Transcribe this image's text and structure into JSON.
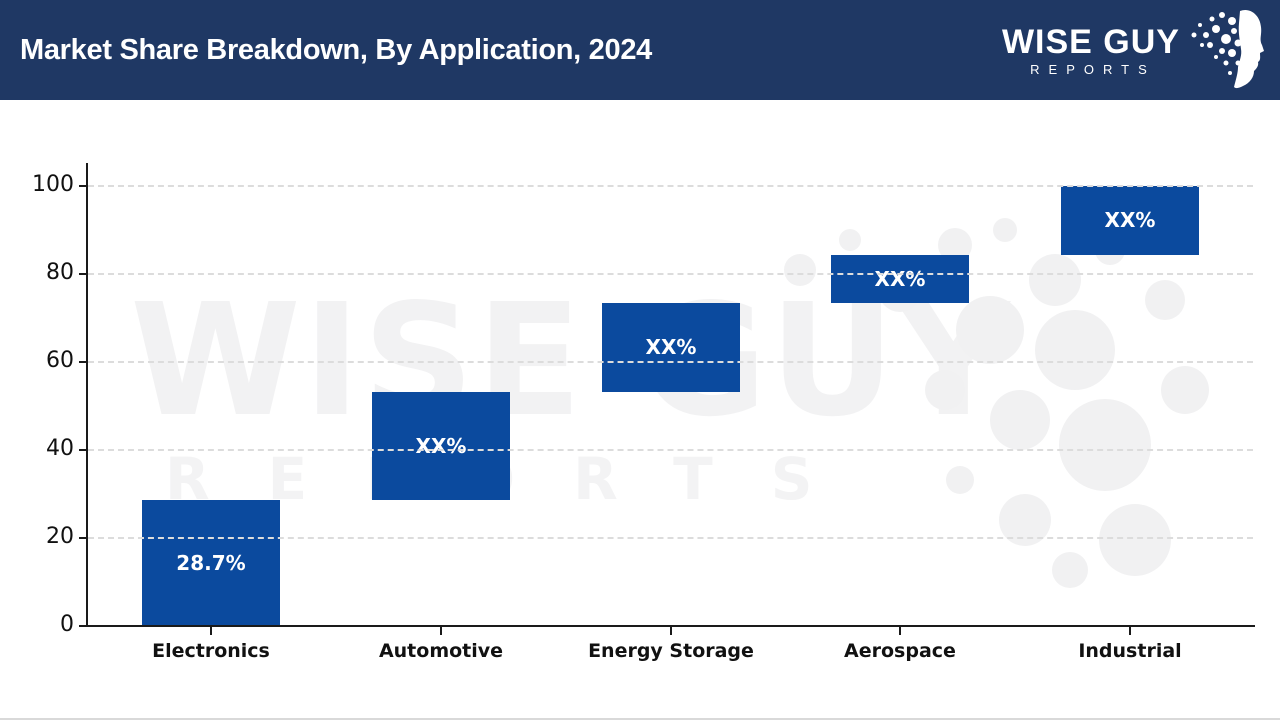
{
  "header": {
    "title": "Market Share Breakdown, By Application, 2024",
    "logo": {
      "line1": "WISE GUY",
      "line2": "REPORTS",
      "icon": "dotted-face-profile"
    }
  },
  "watermark": {
    "line1": "WISE GUY",
    "line2": "REPORTS"
  },
  "chart_data": {
    "type": "bar",
    "subtype": "waterfall",
    "title": "Market Share Breakdown, By Application, 2024",
    "xlabel": "",
    "ylabel": "",
    "categories": [
      "Electronics",
      "Automotive",
      "Energy Storage",
      "Aerospace",
      "Industrial"
    ],
    "segments": [
      {
        "category": "Electronics",
        "start": 0,
        "end": 28.7,
        "label": "28.7%"
      },
      {
        "category": "Automotive",
        "start": 28.7,
        "end": 53.2,
        "label": "XX%"
      },
      {
        "category": "Energy Storage",
        "start": 53.2,
        "end": 73.5,
        "label": "XX%"
      },
      {
        "category": "Aerospace",
        "start": 73.5,
        "end": 84.4,
        "label": "XX%"
      },
      {
        "category": "Industrial",
        "start": 84.4,
        "end": 100,
        "label": "XX%"
      }
    ],
    "yticks": [
      0,
      20,
      40,
      60,
      80,
      100
    ],
    "ylim": [
      0,
      105
    ],
    "grid": "horizontal-dashed",
    "grid_above_bars": true,
    "legend": "none",
    "bar_color": "#0b4a9e",
    "bar_label_color": "#ffffff",
    "axis_color": "#1a1a1a",
    "header_color": "#1f3864",
    "watermark_color": "#f2f2f3"
  }
}
